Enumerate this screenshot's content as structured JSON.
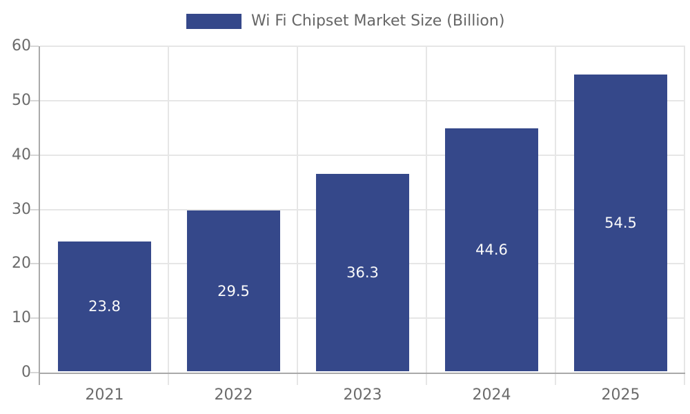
{
  "chart_data": {
    "type": "bar",
    "title": "Wi Fi Chipset Market Size (Billion)",
    "categories": [
      "2021",
      "2022",
      "2023",
      "2024",
      "2025"
    ],
    "values": [
      23.8,
      29.5,
      36.3,
      44.6,
      54.5
    ],
    "value_labels": [
      "23.8",
      "29.5",
      "36.3",
      "44.6",
      "54.5"
    ],
    "xlabel": "",
    "ylabel": "",
    "ylim": [
      0,
      60
    ],
    "yticks": [
      0,
      10,
      20,
      30,
      40,
      50,
      60
    ],
    "grid": true,
    "legend_position": "top-center",
    "bar_label_position": "center",
    "colors": {
      "bar": "#35488a",
      "bar_label": "#fafafa",
      "axis": "#a9a9a9",
      "gridline": "#e6e6e6",
      "tick_mark": "#d6d6d6",
      "tick_label": "#6b6b6b",
      "legend_text": "#666666",
      "background": "#ffffff"
    }
  }
}
